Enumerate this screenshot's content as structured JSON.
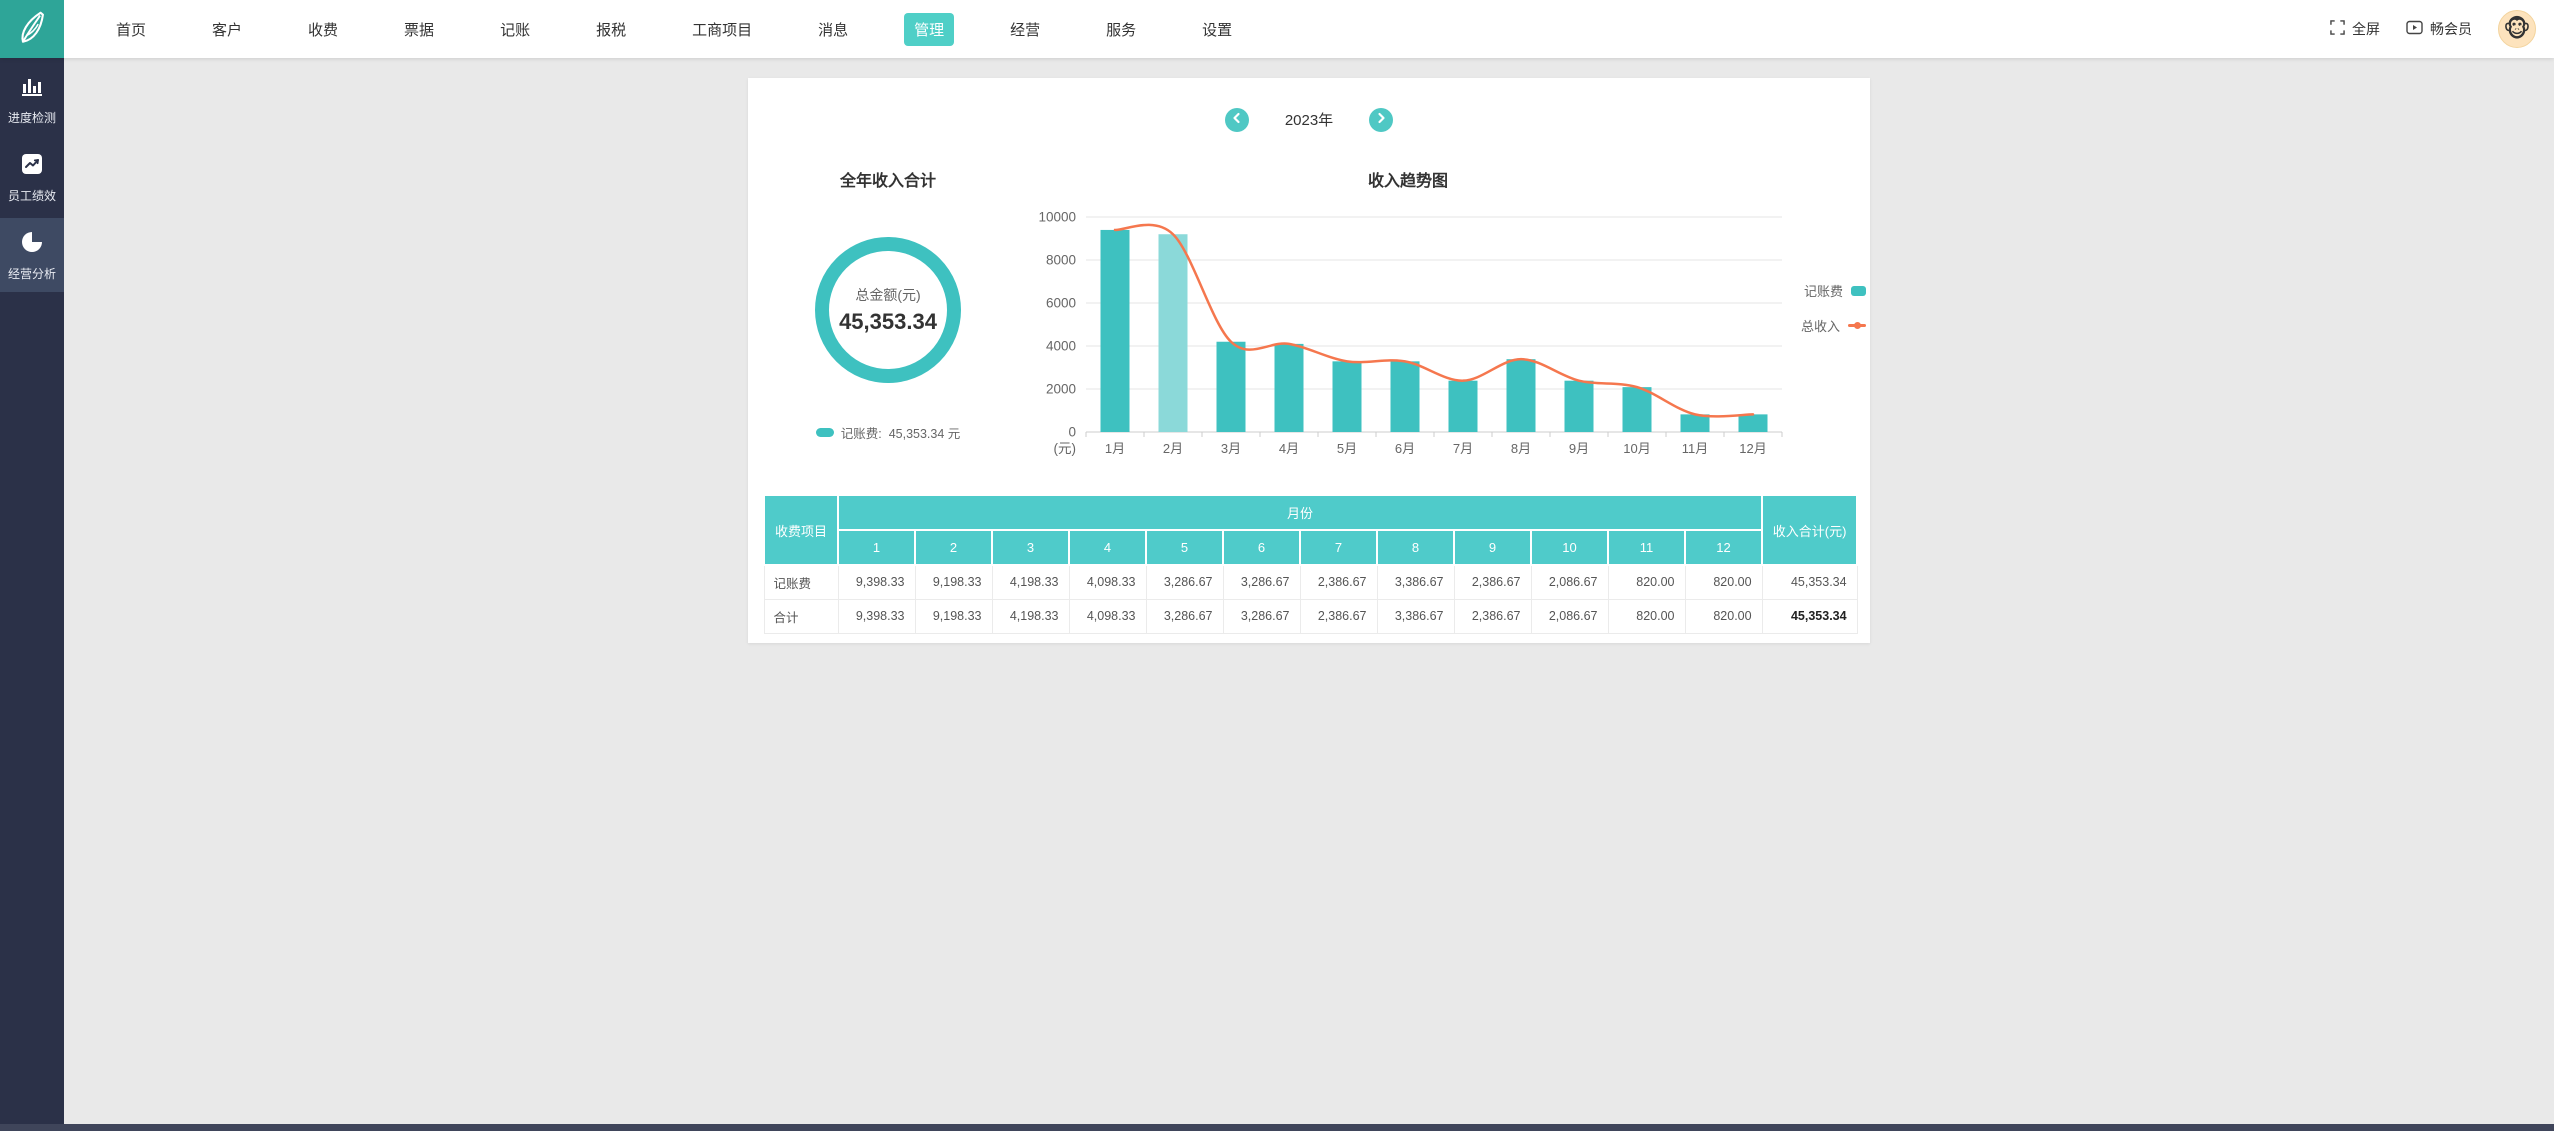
{
  "topbar": {
    "nav_items": [
      "首页",
      "客户",
      "收费",
      "票据",
      "记账",
      "报税",
      "工商项目",
      "消息",
      "管理",
      "经营",
      "服务",
      "设置"
    ],
    "active_item": "管理",
    "fullscreen_label": "全屏",
    "member_label": "畅会员"
  },
  "sidebar": {
    "items": [
      {
        "label": "进度检测",
        "icon": "bar-chart-icon",
        "active": false
      },
      {
        "label": "员工绩效",
        "icon": "line-chart-icon",
        "active": false
      },
      {
        "label": "经营分析",
        "icon": "pie-chart-icon",
        "active": true
      }
    ]
  },
  "year_nav": {
    "year": "2023年"
  },
  "summary": {
    "title": "全年收入合计",
    "donut_center_label": "总金额(元)",
    "donut_center_value": "45,353.34",
    "legend_label": "记账费:",
    "legend_value": "45,353.34 元"
  },
  "chart_data": {
    "type": "bar",
    "title": "收入趋势图",
    "categories": [
      "1月",
      "2月",
      "3月",
      "4月",
      "5月",
      "6月",
      "7月",
      "8月",
      "9月",
      "10月",
      "11月",
      "12月"
    ],
    "series": [
      {
        "name": "记账费",
        "type": "bar",
        "color": "#3ec1c0",
        "highlight_index": 1,
        "highlight_color": "#8bd9d9",
        "values": [
          9398.33,
          9198.33,
          4198.33,
          4098.33,
          3286.67,
          3286.67,
          2386.67,
          3386.67,
          2386.67,
          2086.67,
          820.0,
          820.0
        ]
      },
      {
        "name": "总收入",
        "type": "line",
        "color": "#f5774e",
        "values": [
          9398.33,
          9198.33,
          4198.33,
          4098.33,
          3286.67,
          3286.67,
          2386.67,
          3386.67,
          2386.67,
          2086.67,
          820.0,
          820.0
        ]
      }
    ],
    "ylim": [
      0,
      10000
    ],
    "ytick_interval": 2000,
    "yunit": "(元)",
    "grid": true,
    "legend_position": "right"
  },
  "table": {
    "corner_header": "收费项目",
    "month_group_header": "月份",
    "month_columns": [
      "1",
      "2",
      "3",
      "4",
      "5",
      "6",
      "7",
      "8",
      "9",
      "10",
      "11",
      "12"
    ],
    "total_header": "收入合计(元)",
    "rows": [
      {
        "label": "记账费",
        "values": [
          "9,398.33",
          "9,198.33",
          "4,198.33",
          "4,098.33",
          "3,286.67",
          "3,286.67",
          "2,386.67",
          "3,386.67",
          "2,386.67",
          "2,086.67",
          "820.00",
          "820.00"
        ],
        "total": "45,353.34"
      },
      {
        "label": "合计",
        "values": [
          "9,398.33",
          "9,198.33",
          "4,198.33",
          "4,098.33",
          "3,286.67",
          "3,286.67",
          "2,386.67",
          "3,386.67",
          "2,386.67",
          "2,086.67",
          "820.00",
          "820.00"
        ],
        "total": "45,353.34"
      }
    ]
  },
  "colors": {
    "brand_teal": "#4fcfc7",
    "logo_teal": "#2ea598",
    "chart_teal": "#3ec1c0",
    "chart_teal_light": "#8bd9d9",
    "line_orange": "#f5774e",
    "table_header_teal": "#4fcbca",
    "sidebar_bg": "#2b3148",
    "sidebar_active_bg": "#3e4a63",
    "page_bg": "#e9e9e9"
  }
}
